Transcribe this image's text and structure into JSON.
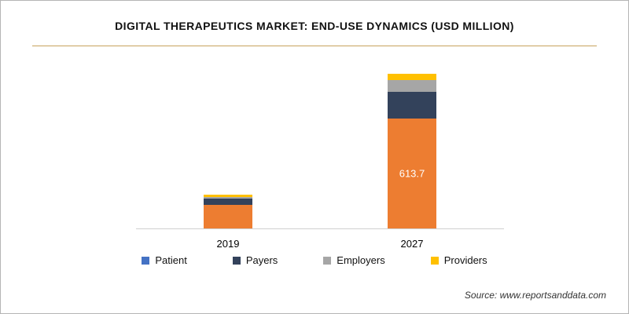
{
  "title": "DIGITAL THERAPEUTICS MARKET: END-USE DYNAMICS (USD MILLION)",
  "source": "Source: www.reportsanddata.com",
  "chart_data": {
    "type": "bar",
    "stacked": true,
    "title": "DIGITAL THERAPEUTICS MARKET: END-USE DYNAMICS (USD MILLION)",
    "categories": [
      "2019",
      "2027"
    ],
    "series": [
      {
        "name": "Patient",
        "legend_color": "#4472C4",
        "bar_color": "#ED7D31",
        "values": [
          130,
          613.7
        ]
      },
      {
        "name": "Payers",
        "legend_color": "#33425B",
        "bar_color": "#33425B",
        "values": [
          35,
          150
        ]
      },
      {
        "name": "Employers",
        "legend_color": "#A6A6A6",
        "bar_color": "#A6A6A6",
        "values": [
          12,
          68
        ]
      },
      {
        "name": "Providers",
        "legend_color": "#FFC000",
        "bar_color": "#FFC000",
        "values": [
          12,
          34
        ]
      }
    ],
    "value_labels": [
      {
        "category": "2027",
        "series": "Patient",
        "text": "613.7"
      }
    ],
    "xlabel": "",
    "ylabel": "",
    "legend_position": "bottom",
    "grid": false
  }
}
